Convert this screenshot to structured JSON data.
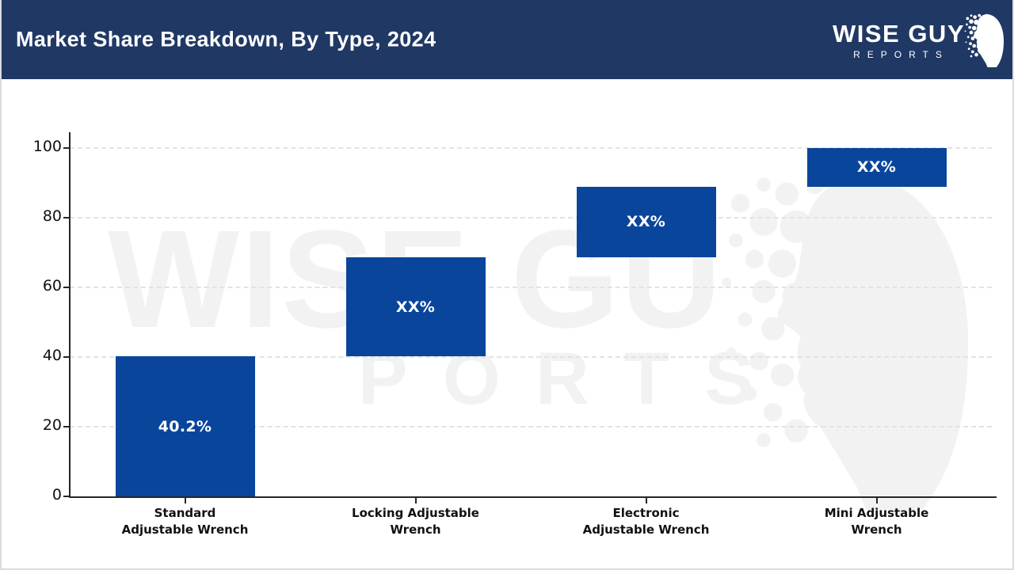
{
  "header": {
    "title": "Market Share Breakdown, By Type, 2024",
    "logo_line1": "WISE GUY",
    "logo_line2": "REPORTS",
    "background_color": "#203864"
  },
  "watermark": {
    "line1": "WISE GU",
    "line2": "PORTS"
  },
  "chart_data": {
    "type": "bar",
    "variant": "waterfall",
    "title": "Market Share Breakdown, By Type, 2024",
    "categories": [
      "Standard Adjustable Wrench",
      "Locking Adjustable Wrench",
      "Electronic Adjustable Wrench",
      "Mini Adjustable Wrench"
    ],
    "category_lines": [
      [
        "Standard",
        "Adjustable Wrench"
      ],
      [
        "Locking Adjustable",
        "Wrench"
      ],
      [
        "Electronic",
        "Adjustable Wrench"
      ],
      [
        "Mini Adjustable",
        "Wrench"
      ]
    ],
    "segments": [
      {
        "category": "Standard Adjustable Wrench",
        "start": 0,
        "end": 40.2,
        "label": "40.2%"
      },
      {
        "category": "Locking Adjustable Wrench",
        "start": 40.2,
        "end": 68.6,
        "label": "XX%"
      },
      {
        "category": "Electronic Adjustable Wrench",
        "start": 68.6,
        "end": 88.9,
        "label": "XX%"
      },
      {
        "category": "Mini Adjustable Wrench",
        "start": 88.9,
        "end": 100,
        "label": "XX%"
      }
    ],
    "ylim": [
      0,
      105
    ],
    "yticks": [
      0,
      20,
      40,
      60,
      80,
      100
    ],
    "grid": true,
    "grid_style": "dashed-horizontal",
    "legend": false,
    "colors": {
      "bar": "#0a459c",
      "bar_label": "#ffffff",
      "grid": "#e2e2e2",
      "axis": "#262626",
      "tick_text": "#111111",
      "watermark": "#f2f2f2"
    }
  }
}
